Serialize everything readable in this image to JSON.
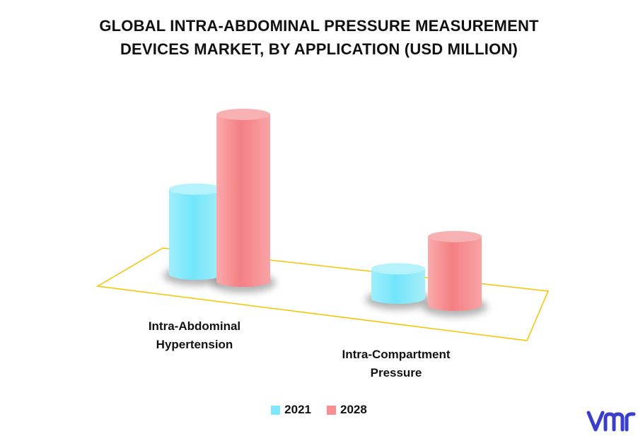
{
  "title": {
    "line1": "GLOBAL INTRA-ABDOMINAL PRESSURE MEASUREMENT",
    "line2": "DEVICES MARKET, BY APPLICATION (USD MILLION)"
  },
  "chart_data": {
    "type": "bar",
    "title": "GLOBAL INTRA-ABDOMINAL PRESSURE MEASUREMENT DEVICES MARKET, BY APPLICATION (USD MILLION)",
    "categories": [
      "Intra-Abdominal Hypertension",
      "Intra-Compartment Pressure"
    ],
    "category_lines": [
      [
        "Intra-Abdominal",
        "Hypertension"
      ],
      [
        "Intra-Compartment",
        "Pressure"
      ]
    ],
    "series": [
      {
        "name": "2021",
        "color": "#7fe9fb",
        "values": [
          130,
          45
        ]
      },
      {
        "name": "2028",
        "color": "#f78e91",
        "values": [
          255,
          105
        ]
      }
    ],
    "ylim": [
      0,
      270
    ],
    "grid": false,
    "legend": "bottom",
    "style": "3d-cylinder"
  },
  "legend": {
    "items": [
      {
        "label": "2021",
        "color": "#7fe9fb"
      },
      {
        "label": "2028",
        "color": "#f78e91"
      }
    ]
  },
  "logo": {
    "name": "vmr-logo",
    "color": "#3b3fc8"
  }
}
